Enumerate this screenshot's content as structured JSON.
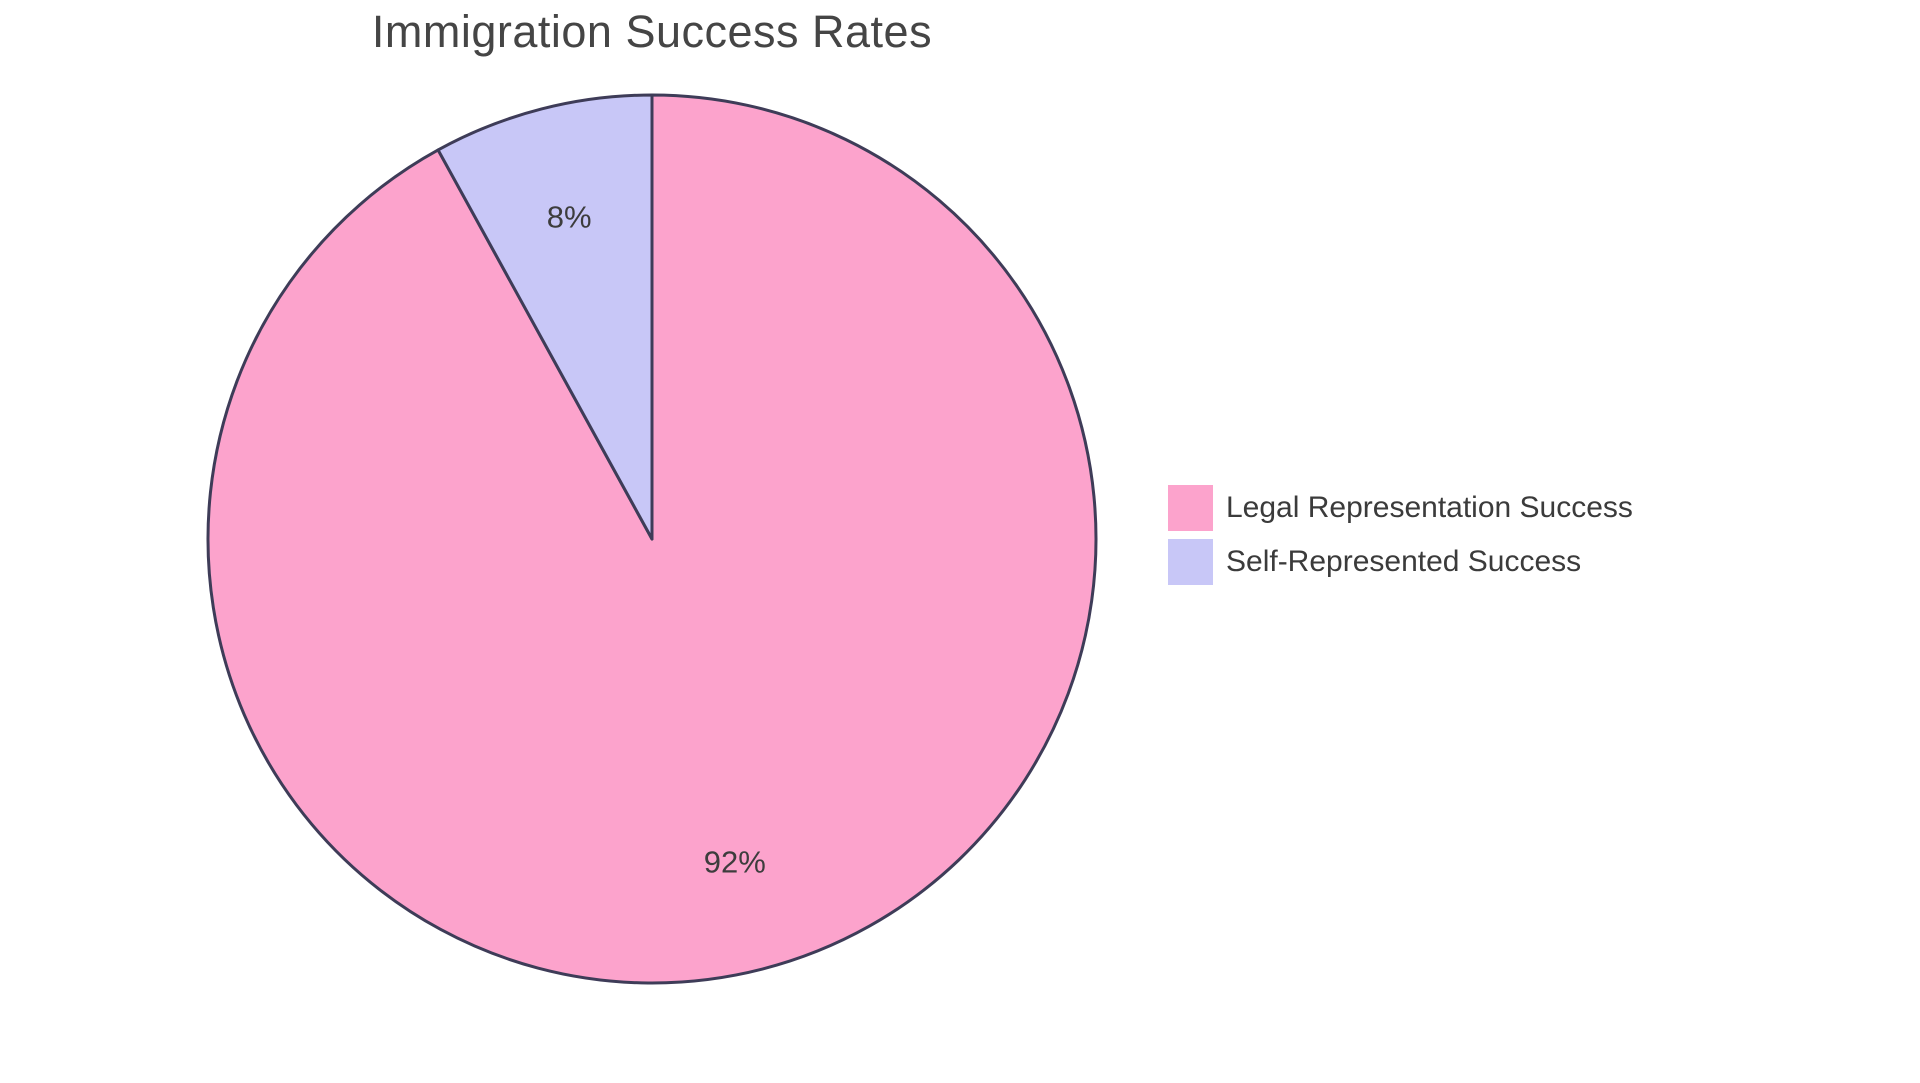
{
  "title": "Immigration Success Rates",
  "chart_data": {
    "type": "pie",
    "title": "Immigration Success Rates",
    "direction": "clockwise",
    "start_angle_deg": 0,
    "legend_position": "right",
    "outline_color": "#3E3C58",
    "label_color": "#3D3D3D",
    "slices": [
      {
        "label": "Legal Representation Success",
        "value": 92,
        "percent_label": "92%",
        "color": "#FCA3CC"
      },
      {
        "label": "Self-Represented Success",
        "value": 8,
        "percent_label": "8%",
        "color": "#C8C7F7"
      }
    ]
  }
}
